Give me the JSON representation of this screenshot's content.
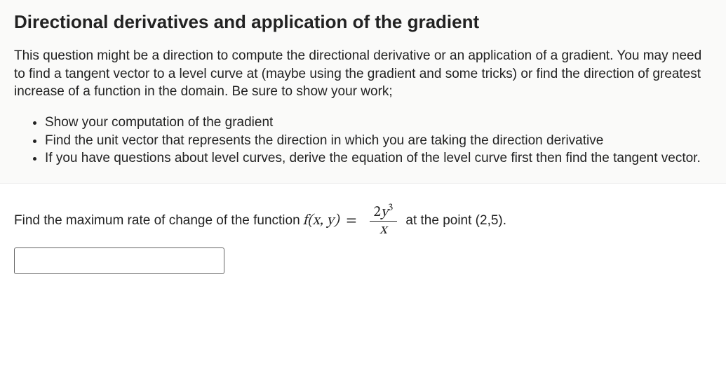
{
  "colors": {
    "text": "#222222",
    "header_bg": "#fafaf9",
    "header_border": "#eeeeee",
    "input_border": "#666666",
    "page_bg": "#ffffff"
  },
  "title": "Directional derivatives and application of the gradient",
  "intro": "This question might be a direction to compute the directional derivative or an application of a gradient.  You may need to find a tangent vector to a level curve at (maybe using the gradient and some tricks) or find the direction of greatest increase of a function in the domain.  Be sure to show your work;",
  "bullets": [
    "Show your computation of the gradient",
    "Find the unit vector that represents the direction in which you are taking the direction derivative",
    "If you have questions about level curves, derive the equation of the level curve first then find the tangent vector."
  ],
  "question": {
    "pre_text": "Find the maximum rate of change of the function ",
    "function_label": "f(x, y)",
    "equals": "=",
    "fraction": {
      "numerator_html": "2y³",
      "numerator_coef": "2",
      "numerator_var": "y",
      "numerator_exp": "3",
      "denominator": "x"
    },
    "post_text": " at the point (2,5).",
    "answer_value": "",
    "answer_placeholder": ""
  }
}
